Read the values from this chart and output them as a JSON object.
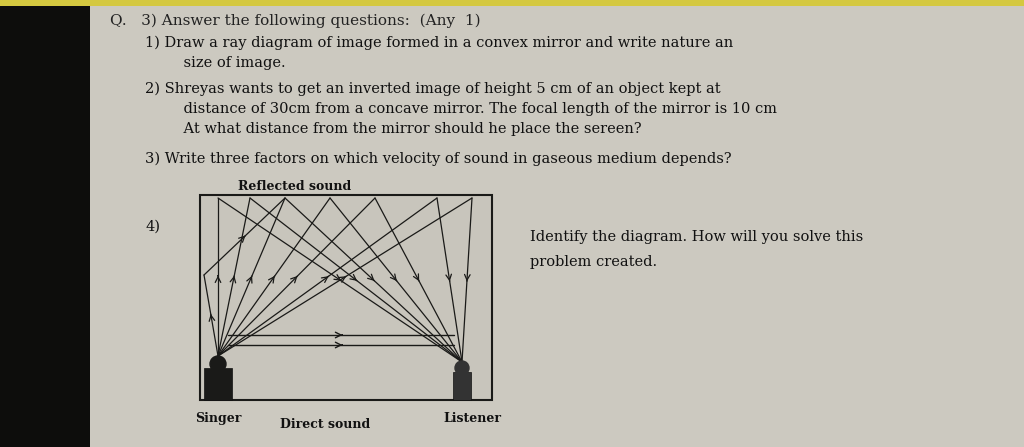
{
  "bg_color_left": "#111111",
  "bg_color_right": "#c8c4bc",
  "page_bg": "#d8d5cc",
  "title_text": "Q.   3) Answer the following questions:  (Any  1)",
  "q1a": "1) Draw a ray diagram of image formed in a convex mirror and write nature an",
  "q1b": "    size of image.",
  "q2a": "2) Shreyas wants to get an inverted image of height 5 cm of an object kept at",
  "q2b": "    distance of 30cm from a concave mirror. The focal length of the mirror is 10 cm",
  "q2c": "    At what distance from the mirror should he place the sereen?",
  "q3": "3) Write three factors on which velocity of sound in gaseous medium depends?",
  "q4_label": "4)",
  "q4_text1": "Identify the diagram. How will you solve this",
  "q4_text2": "problem created.",
  "reflected_sound_label": "Reflected sound",
  "singer_label": "Singer",
  "direct_sound_label": "Direct sound",
  "listener_label": "Listener",
  "title_color": "#222222",
  "text_color": "#111111"
}
